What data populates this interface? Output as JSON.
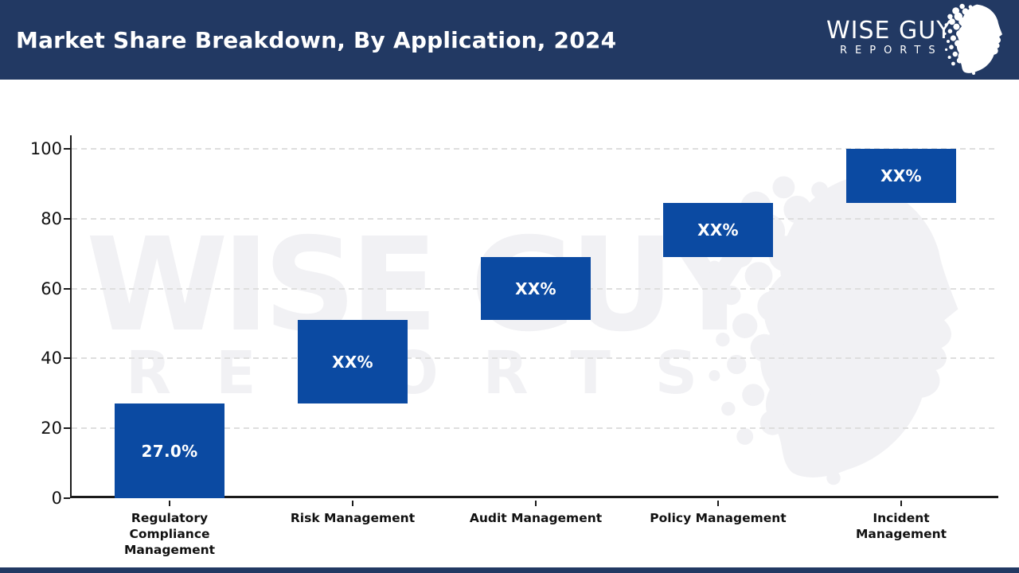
{
  "header": {
    "title": "Market Share Breakdown, By Application, 2024",
    "logo": {
      "name": "WISE GUY",
      "sub": "REPORTS"
    }
  },
  "watermark": {
    "name": "WISE GUY",
    "sub": "REPORTS"
  },
  "colors": {
    "header_bg": "#223963",
    "bar_fill": "#0b4aa2",
    "bar_label_text": "#ffffff",
    "grid_line": "#dedede",
    "axis_line": "#1a1a1a",
    "tick_text": "#111111",
    "watermark": "#f1f1f4"
  },
  "chart_data": {
    "type": "bar",
    "subtype": "floating-waterfall",
    "title": "Market Share Breakdown, By Application, 2024",
    "xlabel": "",
    "ylabel": "",
    "ylim": [
      0,
      100
    ],
    "yticks": [
      0,
      20,
      40,
      60,
      80,
      100
    ],
    "grid": "horizontal-dashed",
    "legend": null,
    "categories": [
      "Regulatory Compliance Management",
      "Risk Management",
      "Audit Management",
      "Policy Management",
      "Incident Management"
    ],
    "category_label_lines": [
      [
        "Regulatory",
        "Compliance",
        "Management"
      ],
      [
        "Risk Management"
      ],
      [
        "Audit Management"
      ],
      [
        "Policy Management"
      ],
      [
        "Incident",
        "Management"
      ]
    ],
    "segments": [
      {
        "category": "Regulatory Compliance Management",
        "start": 0,
        "end": 27,
        "label": "27.0%"
      },
      {
        "category": "Risk Management",
        "start": 27,
        "end": 51,
        "label": "XX%"
      },
      {
        "category": "Audit Management",
        "start": 51,
        "end": 69,
        "label": "XX%"
      },
      {
        "category": "Policy Management",
        "start": 69,
        "end": 84.5,
        "label": "XX%"
      },
      {
        "category": "Incident Management",
        "start": 84.5,
        "end": 100,
        "label": "XX%"
      }
    ]
  }
}
